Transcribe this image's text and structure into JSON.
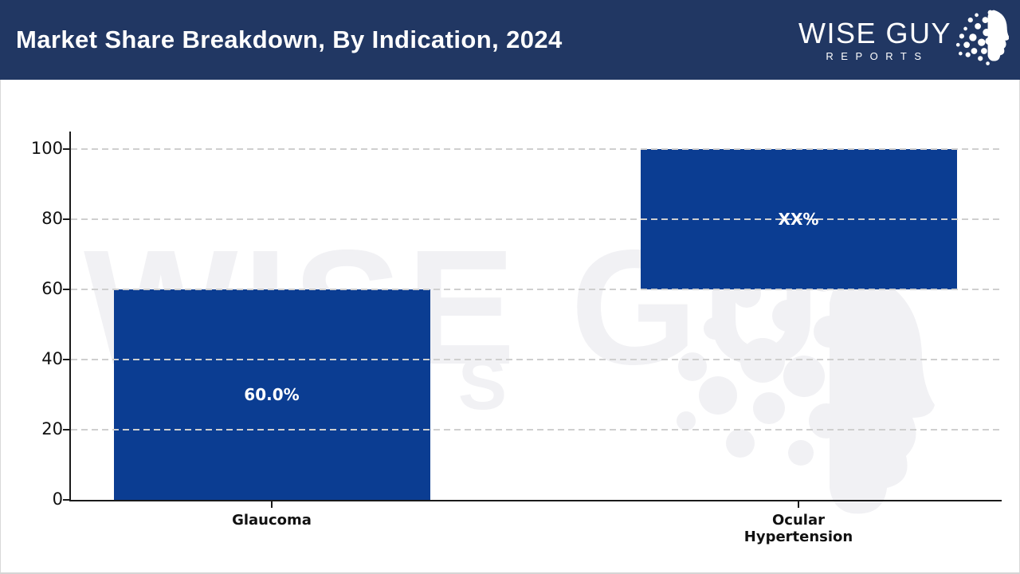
{
  "header": {
    "title": "Market Share Breakdown, By Indication, 2024",
    "logo": {
      "line1": "WISE GUY",
      "line2": "REPORTS"
    }
  },
  "watermark": {
    "line1": "WISE GU",
    "line2": "R T S"
  },
  "colors": {
    "header_bg": "#213763",
    "bar": "#0b3d92",
    "gridline": "#cfcfcf",
    "axis": "#1a1a1a",
    "watermark": "#f1f1f4",
    "frame_border": "#d9d9d9",
    "bar_label": "#ffffff"
  },
  "chart_data": {
    "type": "bar",
    "title": "Market Share Breakdown, By Indication, 2024",
    "categories": [
      "Glaucoma",
      "Ocular\nHypertension"
    ],
    "bars": [
      {
        "category": "Glaucoma",
        "start": 0,
        "end": 60,
        "label": "60.0%"
      },
      {
        "category": "Ocular\nHypertension",
        "start": 60,
        "end": 100,
        "label": "XX%"
      }
    ],
    "ylim": [
      0,
      100
    ],
    "yticks": [
      0,
      20,
      40,
      60,
      80,
      100
    ],
    "xlabel": "",
    "ylabel": "",
    "grid": "horizontal-dashed",
    "legend": "none",
    "bar_color": "#0b3d92"
  }
}
